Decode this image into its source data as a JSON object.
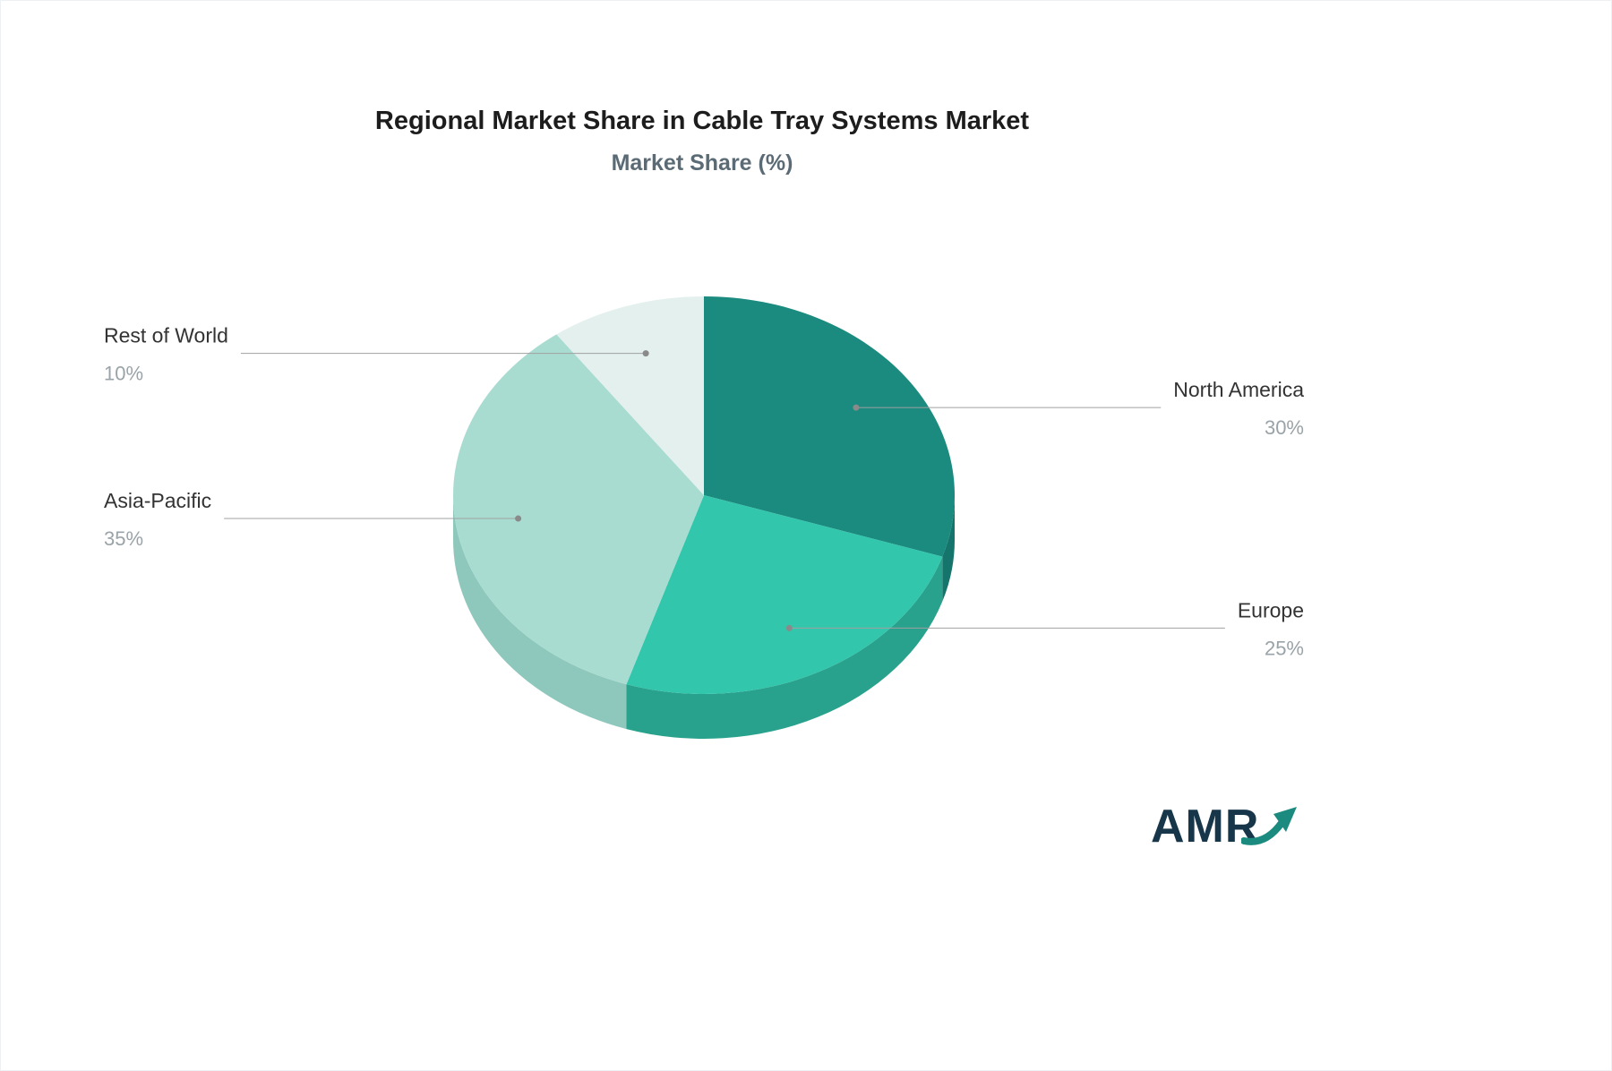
{
  "chart_data": {
    "type": "pie",
    "title": "Regional Market Share in Cable Tray Systems Market",
    "subtitle": "Market Share (%)",
    "unit": "%",
    "start_angle_deg": -90,
    "direction": "clockwise",
    "effect": "3d-extruded",
    "slices": [
      {
        "label": "North America",
        "value": 30,
        "display": "30%",
        "color": "#1b8a7f",
        "side_color": "#15746b",
        "label_side": "right"
      },
      {
        "label": "Europe",
        "value": 25,
        "display": "25%",
        "color": "#32c6ac",
        "side_color": "#29a28d",
        "label_side": "right"
      },
      {
        "label": "Asia-Pacific",
        "value": 35,
        "display": "35%",
        "color": "#a9dcd1",
        "side_color": "#8ec8bc",
        "label_side": "left"
      },
      {
        "label": "Rest of World",
        "value": 10,
        "display": "10%",
        "color": "#e3f0ee",
        "side_color": "#cfe3e0",
        "label_side": "left"
      }
    ],
    "legend_position": "none",
    "label_text_color": "#333333",
    "value_text_color": "#9aa3a8",
    "leader_line_color": "#a0a0a0",
    "leader_dot_color": "#8a8a8a"
  },
  "logo": {
    "text": "AMR",
    "color": "#17364a",
    "arrow_color": "#1b8a7f"
  }
}
